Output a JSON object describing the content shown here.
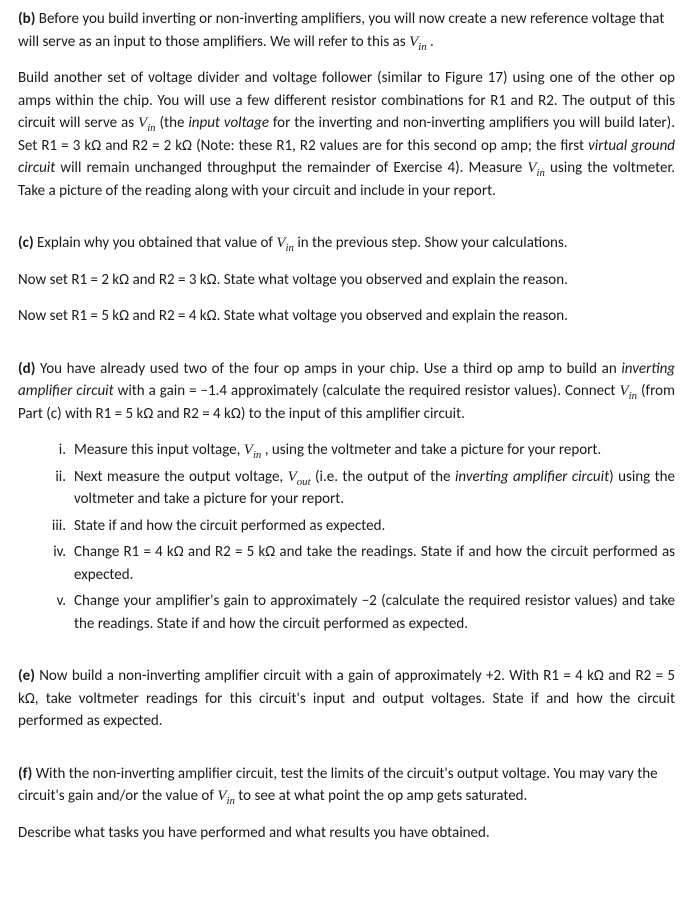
{
  "b": {
    "label": "(b)",
    "p1_a": " Before you build inverting or non-inverting amplifiers, you will now create a new reference voltage that will serve as an input to those amplifiers. We will refer to this as ",
    "vin_html": "V<span class=\"sub\">in</span>",
    "p1_b": " .",
    "p2_a": "Build another set of voltage divider and voltage follower (similar to Figure 17) using one of the other op amps within the chip. You will use a few different resistor combinations for R1 and R2. The output of this circuit will serve as ",
    "p2_b": " (the ",
    "p2_emph": "input voltage",
    "p2_c": " for the inverting and non-inverting amplifiers you will build later). Set R1 = 3 kΩ and R2 = 2 kΩ (Note: these R1, R2 values are for this second op amp; the first ",
    "p2_emph2": "virtual ground circuit",
    "p2_d": " will remain unchanged throughput the remainder of Exercise 4). Measure ",
    "p2_e": " using the voltmeter. Take a picture of the reading along with your circuit and include in your report."
  },
  "c": {
    "label": "(c)",
    "p1_a": " Explain why you obtained that value of ",
    "p1_b": " in the previous step. Show your calculations.",
    "p2": "Now set R1 =  2 kΩ and R2 = 3 kΩ. State what voltage you observed and explain the reason.",
    "p3": "Now set R1 =  5 kΩ and R2 = 4 kΩ. State what voltage you observed and explain the reason."
  },
  "d": {
    "label": "(d)",
    "p1_a": " You have already used two of the four op amps in your chip. Use a third op amp to build an ",
    "p1_emph": "inverting amplifier circuit",
    "p1_b": " with a gain = −1.4 approximately (calculate the required resistor values). Connect ",
    "p1_c": " (from Part (c) with R1 =  5 kΩ and R2 = 4 kΩ) to the input of this amplifier circuit.",
    "items": {
      "i": {
        "num": "i.",
        "a": "Measure this input voltage, ",
        "b": " , using the voltmeter and take a picture for your report."
      },
      "ii": {
        "num": "ii.",
        "a": "Next measure the output voltage, ",
        "vout_html": "V<span class=\"sub\">out</span>",
        "b": " (i.e. the output of the ",
        "emph": "inverting amplifier circuit",
        "c": ") using the voltmeter and take a picture for your report."
      },
      "iii": {
        "num": "iii.",
        "t": "State if and how the circuit performed as expected."
      },
      "iv": {
        "num": "iv.",
        "t": "Change R1 =  4 kΩ and R2 = 5 kΩ and take the readings. State if and how the circuit performed as expected."
      },
      "v": {
        "num": "v.",
        "t": "Change your amplifier's gain to approximately −2 (calculate the required resistor values) and take the readings. State if and how the circuit performed as expected."
      }
    }
  },
  "e": {
    "label": "(e)",
    "p1": " Now build a non-inverting amplifier circuit with a gain of approximately +2. With R1 =  4 kΩ and R2 = 5 kΩ, take voltmeter readings for this circuit's input and output voltages. State if and how the circuit performed as expected."
  },
  "f": {
    "label": "(f)",
    "p1_a": " With the non-inverting amplifier circuit, test the limits of the circuit's output voltage. You may vary the circuit's gain and/or the value of ",
    "p1_b": " to see at what point the op amp gets saturated.",
    "p2": "Describe what tasks you have performed and what results you have obtained."
  }
}
